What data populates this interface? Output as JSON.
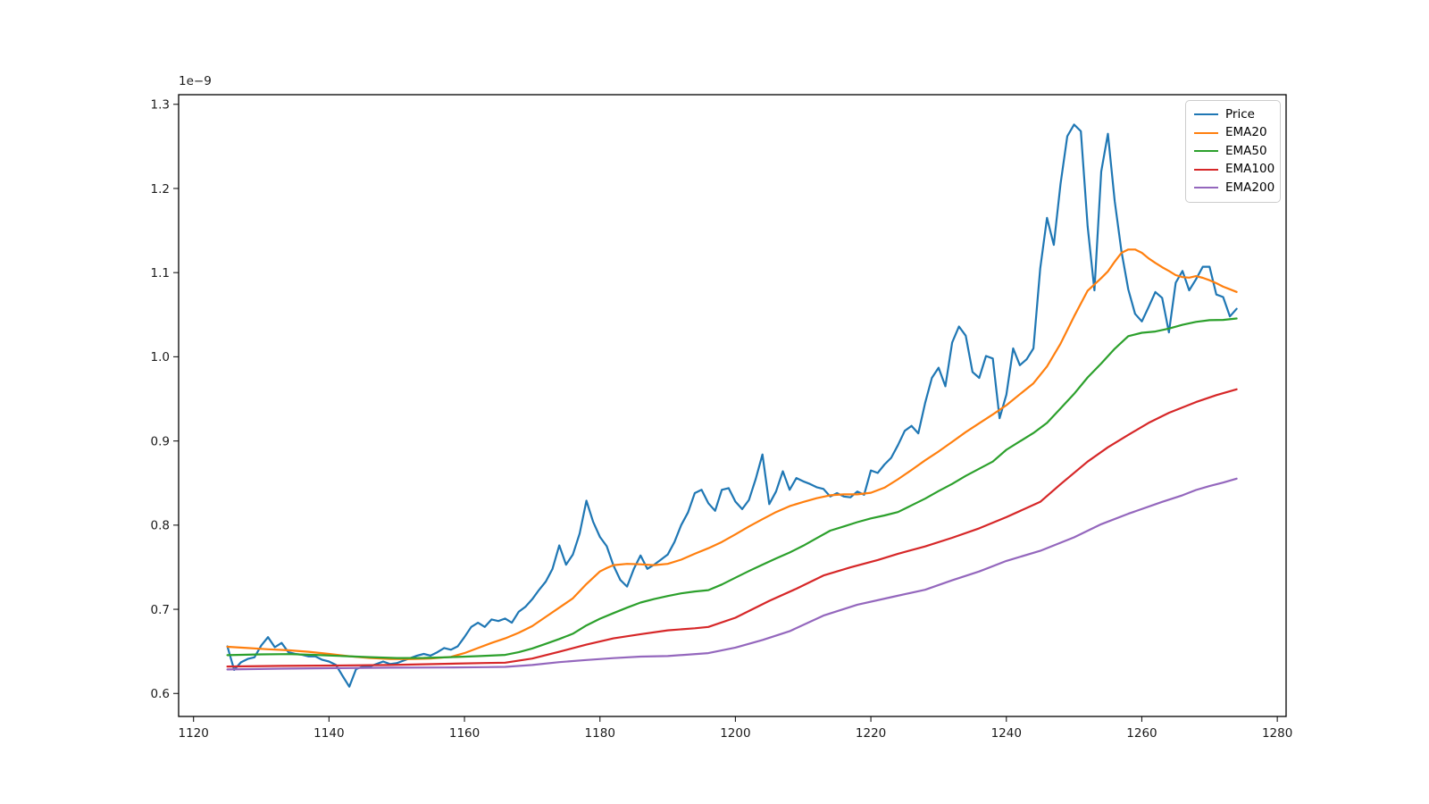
{
  "figure": {
    "background": "#ffffff",
    "text_color": "#1a1a1a"
  },
  "chart_data": {
    "type": "line",
    "title": "",
    "xlabel": "",
    "ylabel": "",
    "offset_label": "1e−9",
    "grid": false,
    "legend_position": "upper right",
    "xlim": [
      1117.8,
      1281.3
    ],
    "ylim": [
      0.5727,
      1.3114
    ],
    "x_ticks": [
      1120,
      1140,
      1160,
      1180,
      1200,
      1220,
      1240,
      1260,
      1280
    ],
    "x_tick_labels": [
      "1120",
      "1140",
      "1160",
      "1180",
      "1200",
      "1220",
      "1240",
      "1260",
      "1280"
    ],
    "y_ticks": [
      0.6,
      0.7,
      0.8,
      0.9,
      1.0,
      1.1,
      1.2,
      1.3
    ],
    "y_tick_labels": [
      "0.6",
      "0.7",
      "0.8",
      "0.9",
      "1.0",
      "1.1",
      "1.2",
      "1.3"
    ],
    "series": [
      {
        "name": "Price",
        "color": "#1f77b4",
        "x0": 1125,
        "dx": 1,
        "y": [
          0.656,
          0.628,
          0.637,
          0.641,
          0.643,
          0.657,
          0.667,
          0.655,
          0.66,
          0.649,
          0.647,
          0.646,
          0.644,
          0.644,
          0.64,
          0.638,
          0.634,
          0.621,
          0.608,
          0.629,
          0.632,
          0.632,
          0.635,
          0.638,
          0.635,
          0.636,
          0.639,
          0.642,
          0.645,
          0.647,
          0.645,
          0.649,
          0.654,
          0.652,
          0.656,
          0.667,
          0.679,
          0.684,
          0.679,
          0.688,
          0.686,
          0.689,
          0.684,
          0.697,
          0.703,
          0.712,
          0.723,
          0.733,
          0.748,
          0.776,
          0.753,
          0.765,
          0.79,
          0.829,
          0.804,
          0.786,
          0.775,
          0.752,
          0.735,
          0.727,
          0.748,
          0.764,
          0.748,
          0.753,
          0.759,
          0.765,
          0.78,
          0.8,
          0.815,
          0.838,
          0.842,
          0.826,
          0.817,
          0.842,
          0.844,
          0.828,
          0.819,
          0.83,
          0.855,
          0.884,
          0.825,
          0.84,
          0.864,
          0.842,
          0.856,
          0.852,
          0.849,
          0.845,
          0.843,
          0.834,
          0.838,
          0.834,
          0.833,
          0.84,
          0.836,
          0.865,
          0.862,
          0.872,
          0.88,
          0.895,
          0.912,
          0.918,
          0.909,
          0.945,
          0.975,
          0.987,
          0.965,
          1.017,
          1.036,
          1.025,
          0.982,
          0.975,
          1.001,
          0.998,
          0.927,
          0.955,
          1.01,
          0.99,
          0.997,
          1.01,
          1.105,
          1.165,
          1.133,
          1.205,
          1.262,
          1.276,
          1.268,
          1.155,
          1.079,
          1.22,
          1.265,
          1.185,
          1.125,
          1.08,
          1.051,
          1.042,
          1.059,
          1.077,
          1.07,
          1.029,
          1.088,
          1.102,
          1.079,
          1.092,
          1.107,
          1.107,
          1.074,
          1.071,
          1.048,
          1.057
        ]
      },
      {
        "name": "EMA20",
        "color": "#ff7f0e",
        "x": [
          1125,
          1128,
          1131,
          1134,
          1137,
          1140,
          1143,
          1146,
          1149,
          1152,
          1155,
          1158,
          1160,
          1162,
          1164,
          1166,
          1168,
          1170,
          1172,
          1174,
          1176,
          1178,
          1180,
          1181,
          1182,
          1184,
          1186,
          1188,
          1190,
          1192,
          1194,
          1196,
          1198,
          1200,
          1202,
          1204,
          1206,
          1208,
          1210,
          1212,
          1214,
          1216,
          1218,
          1220,
          1222,
          1224,
          1226,
          1228,
          1230,
          1232,
          1234,
          1236,
          1238,
          1240,
          1242,
          1244,
          1246,
          1248,
          1250,
          1252,
          1254,
          1255,
          1256,
          1257,
          1258,
          1259,
          1260,
          1261,
          1262,
          1263,
          1264,
          1265,
          1266,
          1267,
          1268,
          1269,
          1270,
          1271,
          1272,
          1273,
          1274
        ],
        "y": [
          0.6555,
          0.654,
          0.6525,
          0.6513,
          0.6495,
          0.647,
          0.6442,
          0.6422,
          0.641,
          0.6408,
          0.6415,
          0.6435,
          0.648,
          0.654,
          0.66,
          0.6655,
          0.672,
          0.68,
          0.691,
          0.702,
          0.713,
          0.73,
          0.745,
          0.749,
          0.7525,
          0.754,
          0.7535,
          0.7525,
          0.754,
          0.759,
          0.766,
          0.7725,
          0.78,
          0.789,
          0.7985,
          0.807,
          0.8155,
          0.8225,
          0.8275,
          0.832,
          0.8355,
          0.8365,
          0.8365,
          0.8385,
          0.8445,
          0.8545,
          0.8655,
          0.877,
          0.8875,
          0.899,
          0.9105,
          0.921,
          0.9315,
          0.9425,
          0.9555,
          0.9685,
          0.9885,
          1.0155,
          1.048,
          1.0785,
          1.0935,
          1.1015,
          1.113,
          1.1235,
          1.1275,
          1.1275,
          1.1235,
          1.117,
          1.1115,
          1.1065,
          1.102,
          1.097,
          1.0947,
          1.094,
          1.0958,
          1.0938,
          1.091,
          1.0875,
          1.0833,
          1.0802,
          1.0771
        ]
      },
      {
        "name": "EMA50",
        "color": "#2ca02c",
        "x": [
          1125,
          1130,
          1134,
          1138,
          1142,
          1146,
          1150,
          1154,
          1158,
          1162,
          1166,
          1168,
          1170,
          1172,
          1174,
          1176,
          1178,
          1180,
          1182,
          1184,
          1186,
          1188,
          1190,
          1192,
          1194,
          1196,
          1198,
          1200,
          1202,
          1204,
          1206,
          1208,
          1210,
          1212,
          1214,
          1216,
          1218,
          1220,
          1222,
          1224,
          1226,
          1228,
          1230,
          1232,
          1234,
          1236,
          1238,
          1240,
          1242,
          1244,
          1246,
          1248,
          1250,
          1252,
          1254,
          1256,
          1258,
          1260,
          1262,
          1264,
          1266,
          1268,
          1270,
          1272,
          1274
        ],
        "y": [
          0.6455,
          0.6465,
          0.6468,
          0.6458,
          0.6445,
          0.6432,
          0.6421,
          0.6422,
          0.6432,
          0.6443,
          0.6458,
          0.649,
          0.6535,
          0.659,
          0.6647,
          0.671,
          0.6808,
          0.6888,
          0.6955,
          0.702,
          0.708,
          0.7122,
          0.7158,
          0.719,
          0.7212,
          0.7228,
          0.7295,
          0.7375,
          0.7455,
          0.753,
          0.7605,
          0.7675,
          0.7755,
          0.7845,
          0.7935,
          0.7985,
          0.8035,
          0.808,
          0.8115,
          0.8155,
          0.8235,
          0.8315,
          0.8405,
          0.849,
          0.8585,
          0.867,
          0.8755,
          0.8895,
          0.8995,
          0.9095,
          0.9215,
          0.9385,
          0.956,
          0.9755,
          0.992,
          1.0095,
          1.0245,
          1.0285,
          1.03,
          1.0335,
          1.038,
          1.0415,
          1.0435,
          1.0438,
          1.0455
        ]
      },
      {
        "name": "EMA100",
        "color": "#d62728",
        "x": [
          1125,
          1133,
          1141,
          1149,
          1157,
          1163,
          1166,
          1170,
          1174,
          1178,
          1182,
          1186,
          1190,
          1194,
          1196,
          1200,
          1205,
          1209,
          1213,
          1217,
          1221,
          1224,
          1228,
          1232,
          1236,
          1240,
          1245,
          1248,
          1252,
          1255,
          1258,
          1261,
          1264,
          1268,
          1271,
          1274
        ],
        "y": [
          0.632,
          0.6328,
          0.6332,
          0.6338,
          0.6352,
          0.6362,
          0.6366,
          0.6415,
          0.6495,
          0.658,
          0.6655,
          0.6705,
          0.675,
          0.6775,
          0.679,
          0.69,
          0.71,
          0.7245,
          0.7402,
          0.7498,
          0.7585,
          0.766,
          0.7747,
          0.785,
          0.7962,
          0.8095,
          0.8276,
          0.8485,
          0.8755,
          0.8925,
          0.9072,
          0.9215,
          0.9335,
          0.9462,
          0.9545,
          0.9614
        ]
      },
      {
        "name": "EMA200",
        "color": "#9467bd",
        "x": [
          1125,
          1133,
          1141,
          1149,
          1157,
          1163,
          1166,
          1170,
          1174,
          1178,
          1182,
          1186,
          1190,
          1196,
          1200,
          1204,
          1208,
          1213,
          1218,
          1223,
          1228,
          1232,
          1236,
          1240,
          1245,
          1250,
          1254,
          1258,
          1263,
          1266,
          1268,
          1270,
          1272,
          1274
        ],
        "y": [
          0.6285,
          0.6295,
          0.6301,
          0.6306,
          0.6309,
          0.6313,
          0.6316,
          0.6338,
          0.6372,
          0.6398,
          0.642,
          0.6438,
          0.6445,
          0.648,
          0.6545,
          0.6635,
          0.674,
          0.6925,
          0.7055,
          0.7144,
          0.7232,
          0.7345,
          0.745,
          0.7575,
          0.7695,
          0.7855,
          0.8011,
          0.8135,
          0.8276,
          0.8355,
          0.8418,
          0.8464,
          0.8506,
          0.8552
        ]
      }
    ]
  }
}
